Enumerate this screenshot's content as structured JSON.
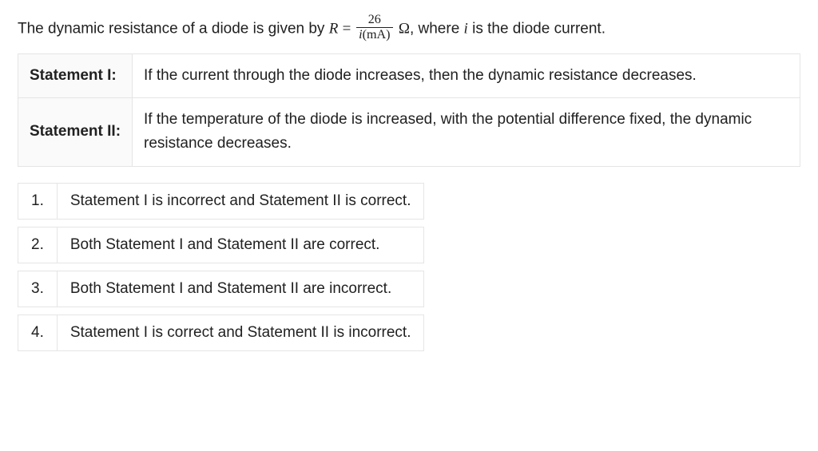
{
  "stem": {
    "prefix": "The dynamic resistance of a diode is given by ",
    "R": "R",
    "eq": "=",
    "num": "26",
    "den_i": "i",
    "den_paren": "(mA)",
    "omega": "Ω",
    "mid": ", where ",
    "i": "i",
    "suffix": " is the diode current."
  },
  "statements": [
    {
      "label": "Statement I:",
      "text": "If the current through the diode increases, then the dynamic resistance decreases."
    },
    {
      "label": "Statement II:",
      "text": "If the temperature of the diode is increased, with the potential difference fixed, the dynamic resistance decreases."
    }
  ],
  "options": [
    {
      "n": "1.",
      "text": "Statement I is incorrect and Statement II is correct."
    },
    {
      "n": "2.",
      "text": "Both Statement I and Statement II are correct."
    },
    {
      "n": "3.",
      "text": "Both Statement I and Statement II are incorrect."
    },
    {
      "n": "4.",
      "text": "Statement I is correct and Statement II is incorrect."
    }
  ]
}
